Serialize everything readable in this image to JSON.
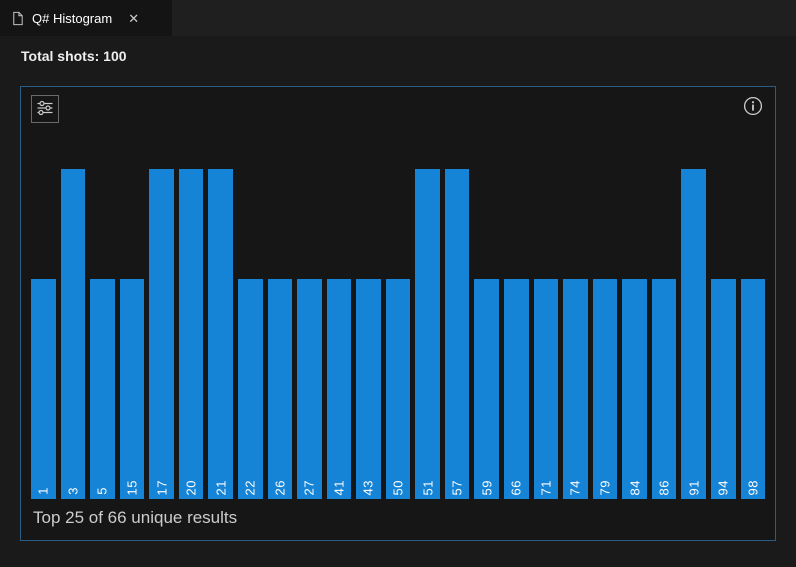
{
  "tab": {
    "title": "Q# Histogram",
    "close_glyph": "✕"
  },
  "summary": {
    "total_shots": "Total shots: 100"
  },
  "panel": {
    "footer": "Top 25 of 66 unique results"
  },
  "icons": {
    "tab_file": "file-icon",
    "close": "close-icon",
    "settings": "sliders-icon",
    "info": "info-icon"
  },
  "colors": {
    "bar": "#1583d6",
    "panel_border": "#2b5c85",
    "background": "#1a1a1a"
  },
  "chart_data": {
    "type": "bar",
    "title": "",
    "xlabel": "",
    "ylabel": "",
    "categories": [
      "1",
      "3",
      "5",
      "15",
      "17",
      "20",
      "21",
      "22",
      "26",
      "27",
      "41",
      "43",
      "50",
      "51",
      "57",
      "59",
      "66",
      "71",
      "74",
      "79",
      "84",
      "86",
      "91",
      "94",
      "98"
    ],
    "values": [
      2,
      3,
      2,
      2,
      3,
      3,
      3,
      2,
      2,
      2,
      2,
      2,
      2,
      3,
      3,
      2,
      2,
      2,
      2,
      2,
      2,
      2,
      3,
      2,
      2
    ],
    "ylim": [
      0,
      3
    ],
    "grid": false,
    "legend": "none",
    "bar_label_rotation": -90,
    "footer": "Top 25 of 66 unique results"
  }
}
